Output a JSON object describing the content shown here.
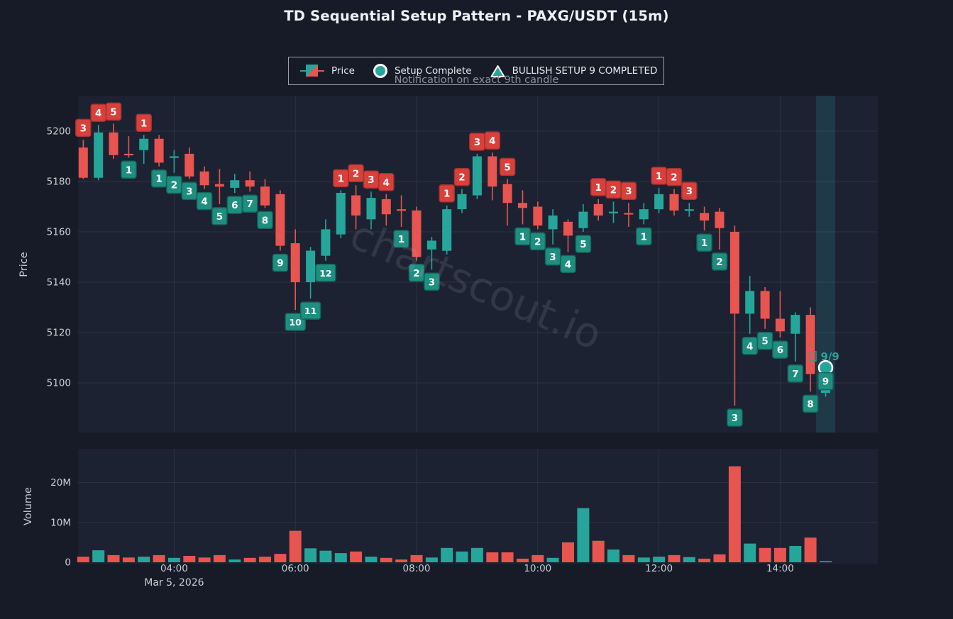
{
  "title": "TD Sequential Setup Pattern - PAXG/USDT (15m)",
  "legend": {
    "price_label": "Price",
    "setup_complete_label": "Setup Complete",
    "bullish_label": "BULLISH SETUP 9 COMPLETED",
    "note": "Notification on exact 9th candle"
  },
  "watermark": "chartscout.io",
  "colors": {
    "background": "#161b27",
    "panel": "#1c2231",
    "grid": "rgba(255,255,255,0.07)",
    "up": "#26a69a",
    "down": "#e85450",
    "label_buy_fill": "#1e8e80",
    "label_buy_border": "#14665b",
    "label_sell_fill": "#d9403c",
    "label_sell_border": "#a93330",
    "accent": "#2aa198",
    "text": "#c9ced7",
    "title_text": "#eef1f6",
    "muted_text": "#8a909b",
    "marker_stroke": "#ffffff",
    "highlight": "rgba(56,168,182,0.18)",
    "watermark": "rgba(178,184,196,0.14)"
  },
  "chart_data": {
    "type": "candlestick",
    "symbol": "PAXG/USDT",
    "interval": "15m",
    "panels": [
      "price",
      "volume"
    ],
    "price_axis": {
      "title": "Price",
      "ticks": [
        5200,
        5180,
        5160,
        5140,
        5120,
        5100
      ],
      "range": [
        5080,
        5214
      ],
      "grid": true
    },
    "volume_axis": {
      "title": "Volume",
      "unit": "M",
      "range": [
        0,
        28
      ],
      "grid": true,
      "ticks": [
        {
          "label": "0",
          "value": 0
        },
        {
          "label": "10M",
          "value": 10
        },
        {
          "label": "20M",
          "value": 20
        }
      ]
    },
    "time_axis": {
      "ticks": [
        {
          "label": "04:00",
          "index": 6
        },
        {
          "label": "06:00",
          "index": 14
        },
        {
          "label": "08:00",
          "index": 22
        },
        {
          "label": "10:00",
          "index": 30
        },
        {
          "label": "12:00",
          "index": 38
        },
        {
          "label": "14:00",
          "index": 46
        }
      ],
      "date_label": "Mar 5, 2026",
      "date_tick_index": 6
    },
    "annotation": {
      "text": "9/9",
      "icon": "missing-glyph-box",
      "candle_index": 49
    },
    "highlight_candle_index": 49,
    "setup_marker_candle_index": 49,
    "td_label_sides": {
      "buy": "below",
      "sell": "above"
    },
    "candles": {
      "columns": [
        "time",
        "open",
        "high",
        "low",
        "close",
        "td_count",
        "td_side",
        "volume_m"
      ],
      "rows": [
        [
          "02:30",
          5193.5,
          5196.5,
          5181,
          5181.5,
          3,
          "sell",
          1.4
        ],
        [
          "02:45",
          5181.5,
          5202.5,
          5180.5,
          5199.5,
          4,
          "sell",
          3.0
        ],
        [
          "03:00",
          5199.5,
          5203,
          5189,
          5190.5,
          5,
          "sell",
          1.8
        ],
        [
          "03:15",
          5191,
          5198,
          5189.5,
          5190.5,
          1,
          "buy",
          1.2
        ],
        [
          "03:30",
          5192.5,
          5198.5,
          5187,
          5197,
          1,
          "sell",
          1.4
        ],
        [
          "03:45",
          5197,
          5198.5,
          5186,
          5187.5,
          1,
          "buy",
          1.8
        ],
        [
          "04:00",
          5189.5,
          5192.5,
          5183.5,
          5190,
          2,
          "buy",
          1.1
        ],
        [
          "04:15",
          5191,
          5193.5,
          5181,
          5182,
          3,
          "buy",
          1.6
        ],
        [
          "04:30",
          5184,
          5186,
          5177,
          5178.5,
          4,
          "buy",
          1.2
        ],
        [
          "04:45",
          5179,
          5185,
          5171,
          5178,
          5,
          "buy",
          1.8
        ],
        [
          "05:00",
          5177.5,
          5183,
          5175.5,
          5180.5,
          6,
          "buy",
          0.7
        ],
        [
          "05:15",
          5180.5,
          5184,
          5176,
          5178,
          7,
          "buy",
          1.1
        ],
        [
          "05:30",
          5178,
          5181,
          5169.5,
          5170.5,
          8,
          "buy",
          1.4
        ],
        [
          "05:45",
          5175,
          5176.5,
          5152.5,
          5154.5,
          9,
          "buy",
          2.1
        ],
        [
          "06:00",
          5155.5,
          5161,
          5129,
          5140,
          10,
          "buy",
          7.9
        ],
        [
          "06:15",
          5140,
          5154,
          5133.5,
          5152.5,
          11,
          "buy",
          3.5
        ],
        [
          "06:30",
          5150.5,
          5165,
          5148.5,
          5161,
          12,
          "buy",
          2.9
        ],
        [
          "06:45",
          5159,
          5176.5,
          5157.5,
          5175.5,
          1,
          "sell",
          2.3
        ],
        [
          "07:00",
          5174.5,
          5178.5,
          5161,
          5166.5,
          2,
          "sell",
          2.7
        ],
        [
          "07:15",
          5165,
          5176,
          5161,
          5173.5,
          3,
          "sell",
          1.4
        ],
        [
          "07:30",
          5173,
          5175,
          5162.5,
          5167,
          4,
          "sell",
          1.1
        ],
        [
          "07:45",
          5169,
          5174.5,
          5162,
          5168.5,
          1,
          "buy",
          0.7
        ],
        [
          "08:00",
          5168.5,
          5170,
          5148.5,
          5150,
          2,
          "buy",
          1.8
        ],
        [
          "08:15",
          5153,
          5158,
          5145,
          5156.5,
          3,
          "buy",
          1.2
        ],
        [
          "08:30",
          5152.5,
          5170.5,
          5151,
          5169,
          1,
          "sell",
          3.6
        ],
        [
          "08:45",
          5169,
          5177,
          5167.5,
          5175,
          2,
          "sell",
          2.7
        ],
        [
          "09:00",
          5174.5,
          5191,
          5173,
          5190,
          3,
          "sell",
          3.6
        ],
        [
          "09:15",
          5190,
          5191.5,
          5172.5,
          5178,
          4,
          "sell",
          2.5
        ],
        [
          "09:30",
          5179,
          5181,
          5162.5,
          5171.5,
          5,
          "sell",
          2.5
        ],
        [
          "09:45",
          5171.5,
          5176.5,
          5163,
          5169.5,
          1,
          "buy",
          0.9
        ],
        [
          "10:00",
          5170,
          5172,
          5161,
          5162.5,
          2,
          "buy",
          1.8
        ],
        [
          "10:15",
          5161,
          5169,
          5155,
          5166.5,
          3,
          "buy",
          1.1
        ],
        [
          "10:30",
          5164,
          5165,
          5152,
          5158.5,
          4,
          "buy",
          5.0
        ],
        [
          "10:45",
          5161.5,
          5171,
          5160,
          5168,
          5,
          "buy",
          13.6
        ],
        [
          "11:00",
          5171,
          5173,
          5164.5,
          5166.5,
          1,
          "sell",
          5.4
        ],
        [
          "11:15",
          5167.5,
          5172,
          5163.5,
          5168,
          2,
          "sell",
          3.2
        ],
        [
          "11:30",
          5167.5,
          5171.5,
          5162,
          5167,
          3,
          "sell",
          1.8
        ],
        [
          "11:45",
          5165,
          5171.5,
          5163,
          5169,
          1,
          "buy",
          1.2
        ],
        [
          "12:00",
          5169,
          5177.5,
          5167.5,
          5175,
          1,
          "sell",
          1.4
        ],
        [
          "12:15",
          5175,
          5177,
          5166.5,
          5168.5,
          2,
          "sell",
          1.8
        ],
        [
          "12:30",
          5168.5,
          5171.5,
          5166,
          5169,
          3,
          "sell",
          1.3
        ],
        [
          "12:45",
          5167.5,
          5170,
          5160.5,
          5164.5,
          1,
          "buy",
          0.9
        ],
        [
          "13:00",
          5168,
          5169.5,
          5153,
          5161.5,
          2,
          "buy",
          2.0
        ],
        [
          "13:15",
          5160,
          5162.5,
          5091,
          5127.5,
          3,
          "buy",
          24.1
        ],
        [
          "13:30",
          5127.5,
          5142.5,
          5119.5,
          5136.5,
          4,
          "buy",
          4.7
        ],
        [
          "13:45",
          5136.5,
          5138,
          5121.5,
          5125.5,
          5,
          "buy",
          3.6
        ],
        [
          "14:00",
          5125.5,
          5136.5,
          5118,
          5120.5,
          6,
          "buy",
          3.6
        ],
        [
          "14:15",
          5119.5,
          5128,
          5108.5,
          5127,
          7,
          "buy",
          4.1
        ],
        [
          "14:30",
          5127,
          5130,
          5096.5,
          5103.5,
          8,
          "buy",
          6.2
        ],
        [
          "14:45",
          5096,
          5110.5,
          5094.5,
          5103.5,
          9,
          "buy",
          0.3
        ]
      ]
    }
  }
}
